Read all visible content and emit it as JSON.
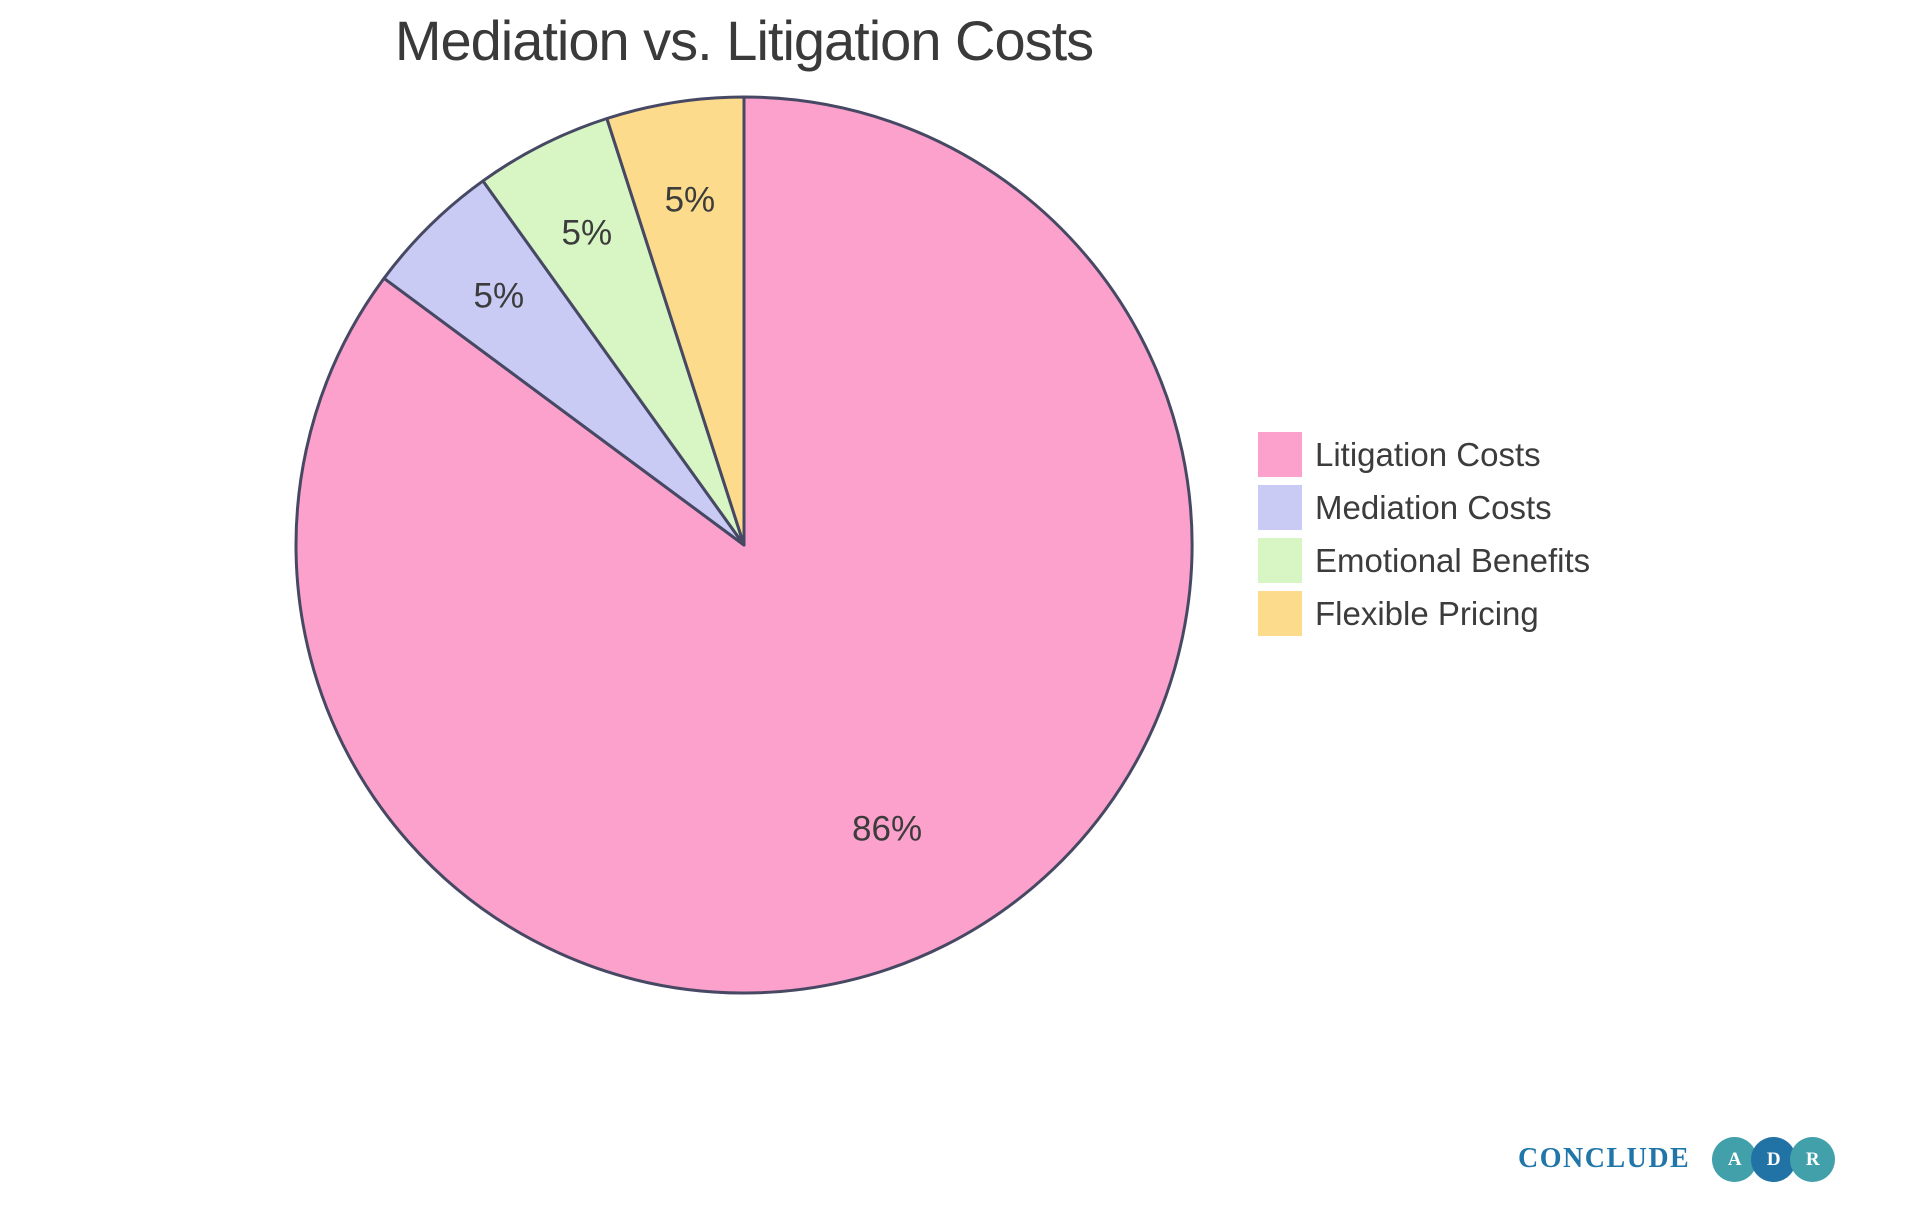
{
  "page": {
    "background": "#ffffff"
  },
  "chart_data": {
    "type": "pie",
    "title": "Mediation vs. Litigation Costs",
    "labels": [
      "Litigation Costs",
      "Mediation Costs",
      "Emotional Benefits",
      "Flexible Pricing"
    ],
    "values": [
      86,
      5,
      5,
      5
    ],
    "percent_labels": [
      "86%",
      "5%",
      "5%",
      "5%"
    ],
    "colors": [
      "#FBA1CC",
      "#C9CBF5",
      "#D8F6C3",
      "#FCDB8D"
    ],
    "slice_border_color": "#474964",
    "label_color": "#3C3C3C",
    "title_color": "#3A3A3A",
    "start_angle_deg": 0,
    "direction": "clockwise",
    "legend_position": "right",
    "label_radius_frac": [
      0.71,
      0.78,
      0.78,
      0.78
    ]
  },
  "logo": {
    "wordmark": "CONCLUDE",
    "wordmark_color": "#2076A9",
    "letter_color": "#FFFFFF",
    "circles": [
      {
        "letter": "A",
        "color": "#41A0AA"
      },
      {
        "letter": "D",
        "color": "#2273A5"
      },
      {
        "letter": "R",
        "color": "#41A0AA"
      }
    ]
  }
}
